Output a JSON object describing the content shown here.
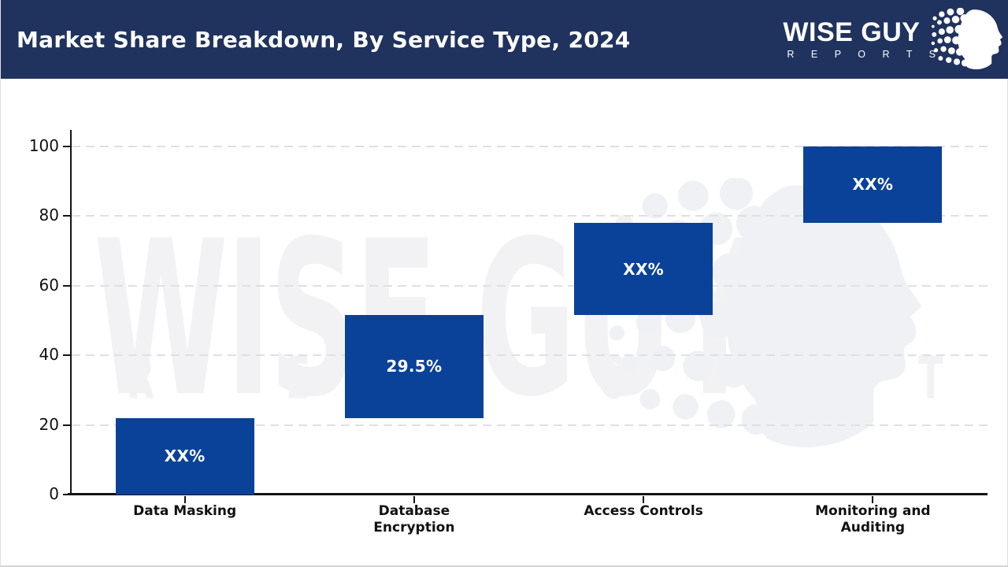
{
  "header": {
    "title": "Market Share Breakdown, By Service Type, 2024",
    "logo": {
      "wordmark": "WISE GUY",
      "reports": "R E P O R T S"
    }
  },
  "watermark": {
    "wordmark": "WISE GUY",
    "reports": "R E P O R T S"
  },
  "colors": {
    "header_navy": "#20325e",
    "bar_blue": "#0a4299",
    "gridline_gray": "#e0e0e0",
    "watermark_gray": "#f2f2f4"
  },
  "chart_data": {
    "type": "bar",
    "variant": "waterfall",
    "title": "Market Share Breakdown, By Service Type, 2024",
    "categories": [
      [
        "Data Masking"
      ],
      [
        "Database",
        "Encryption"
      ],
      [
        "Access Controls"
      ],
      [
        "Monitoring and",
        "Auditing"
      ]
    ],
    "segments": [
      {
        "category": "Data Masking",
        "start": 0,
        "end": 22,
        "label": "XX%"
      },
      {
        "category": "Database Encryption",
        "start": 22,
        "end": 51.5,
        "label": "29.5%"
      },
      {
        "category": "Access Controls",
        "start": 51.5,
        "end": 78,
        "label": "XX%"
      },
      {
        "category": "Monitoring and Auditing",
        "start": 78,
        "end": 100,
        "label": "XX%"
      }
    ],
    "xlabel": "",
    "ylabel": "",
    "yticks": [
      0,
      20,
      40,
      60,
      80,
      100
    ],
    "ylim": [
      0,
      104.6
    ],
    "grid": "horizontal-dashed",
    "legend": "none",
    "bar_color": "#0a4299"
  }
}
